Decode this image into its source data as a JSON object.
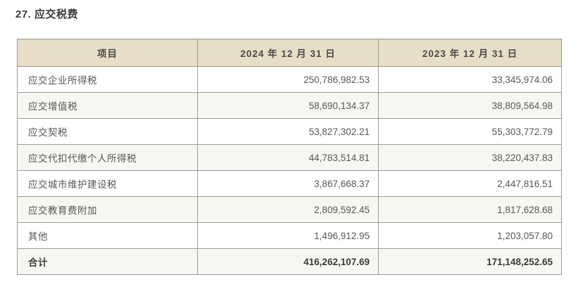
{
  "title": "27. 应交税费",
  "table": {
    "columns": {
      "item": "项目",
      "y2024": "2024 年 12 月 31 日",
      "y2023": "2023 年 12 月 31 日"
    },
    "rows": [
      {
        "item": "应交企业所得税",
        "y2024": "250,786,982.53",
        "y2023": "33,345,974.06"
      },
      {
        "item": "应交增值税",
        "y2024": "58,690,134.37",
        "y2023": "38,809,564.98"
      },
      {
        "item": "应交契税",
        "y2024": "53,827,302.21",
        "y2023": "55,303,772.79"
      },
      {
        "item": "应交代扣代缴个人所得税",
        "y2024": "44,783,514.81",
        "y2023": "38,220,437.83"
      },
      {
        "item": "应交城市维护建设税",
        "y2024": "3,867,668.37",
        "y2023": "2,447,816.51"
      },
      {
        "item": "应交教育费附加",
        "y2024": "2,809,592.45",
        "y2023": "1,817,628.68"
      },
      {
        "item": "其他",
        "y2024": "1,496,912.95",
        "y2023": "1,203,057.80"
      }
    ],
    "total": {
      "item": "合计",
      "y2024": "416,262,107.69",
      "y2023": "171,148,252.65"
    },
    "colors": {
      "header_bg": "#e8dec8",
      "stripe_bg": "#f7f6f1",
      "total_bg": "#f5f4ef",
      "border": "#9b9b9b",
      "text": "#56575a",
      "title_text": "#3b3b3b"
    }
  }
}
